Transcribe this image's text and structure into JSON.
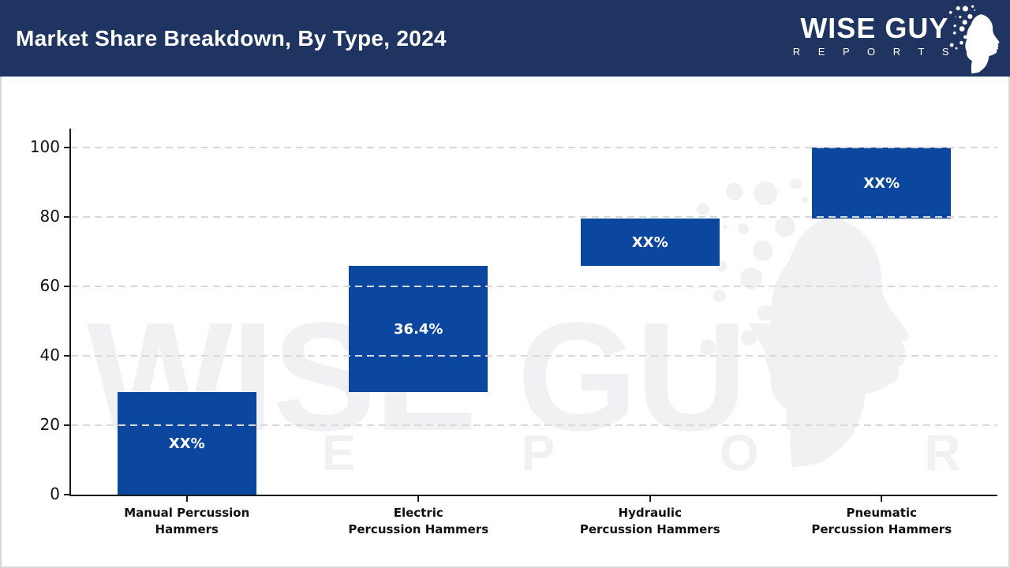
{
  "header": {
    "title": "Market Share Breakdown, By Type, 2024"
  },
  "logo": {
    "line1": "WISE GUY",
    "line2": "R E P O R T S"
  },
  "watermark": {
    "line1": "WISE GUY",
    "line2": "R E P O R T S"
  },
  "colors": {
    "header_bg": "#203462",
    "bar": "#0c479f",
    "grid": "#d9d9d9",
    "watermark": "#f1f1f4",
    "text": "#111111",
    "title_text": "#ffffff"
  },
  "chart_data": {
    "type": "bar",
    "subtype": "floating-stacked-waterfall",
    "title": "Market Share Breakdown, By Type, 2024",
    "categories": [
      "Manual Percussion\nHammers",
      "Electric\nPercussion Hammers",
      "Hydraulic\nPercussion Hammers",
      "Pneumatic\nPercussion Hammers"
    ],
    "segments": [
      {
        "start": 0,
        "end": 29.5,
        "label": "XX%"
      },
      {
        "start": 29.5,
        "end": 65.9,
        "label": "36.4%"
      },
      {
        "start": 65.9,
        "end": 79.5,
        "label": "XX%"
      },
      {
        "start": 79.5,
        "end": 100,
        "label": "XX%"
      }
    ],
    "xlabel": "",
    "ylabel": "",
    "ylim": [
      0,
      100
    ],
    "yticks": [
      0,
      20,
      40,
      60,
      80,
      100
    ],
    "grid": "horizontal-dashed",
    "legend": "none"
  }
}
